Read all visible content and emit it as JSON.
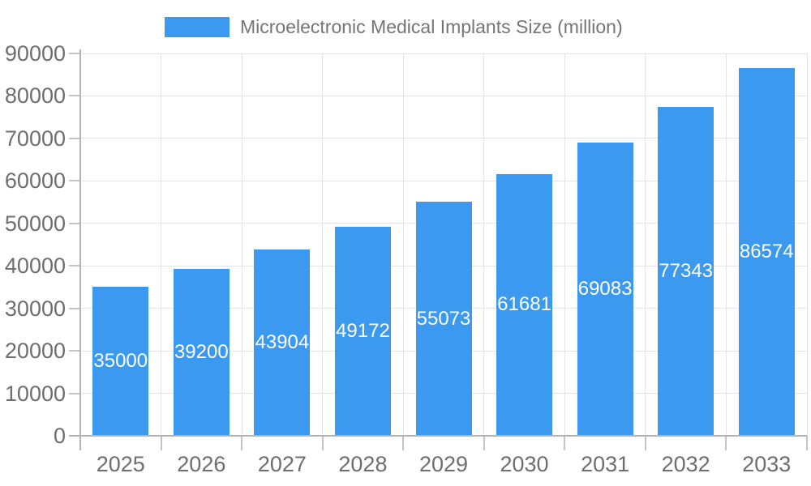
{
  "chart_data": {
    "type": "bar",
    "title": "Microelectronic Medical Implants Size (million)",
    "categories": [
      "2025",
      "2026",
      "2027",
      "2028",
      "2029",
      "2030",
      "2031",
      "2032",
      "2033"
    ],
    "values": [
      35000,
      39200,
      43904,
      49172,
      55073,
      61681,
      69083,
      77343,
      86574
    ],
    "value_labels": [
      "35000",
      "39200",
      "43904",
      "49172",
      "55073",
      "61681",
      "69083",
      "77343",
      "86574"
    ],
    "xlabel": "",
    "ylabel": "",
    "ylim": [
      0,
      90000
    ],
    "ytick_step": 10000,
    "ytick_labels": [
      "0",
      "10000",
      "20000",
      "30000",
      "40000",
      "50000",
      "60000",
      "70000",
      "80000",
      "90000"
    ],
    "grid": true,
    "legend_position": "top",
    "colors": {
      "bar": "#3b99f0",
      "value_label": "#ffffff",
      "axis_label": "#6e6e6e",
      "legend_text": "#757575",
      "gridline": "#e3e3e3",
      "axis_line": "#b3b3b3",
      "tick": "#c4c4c4",
      "background": "#ffffff"
    }
  }
}
